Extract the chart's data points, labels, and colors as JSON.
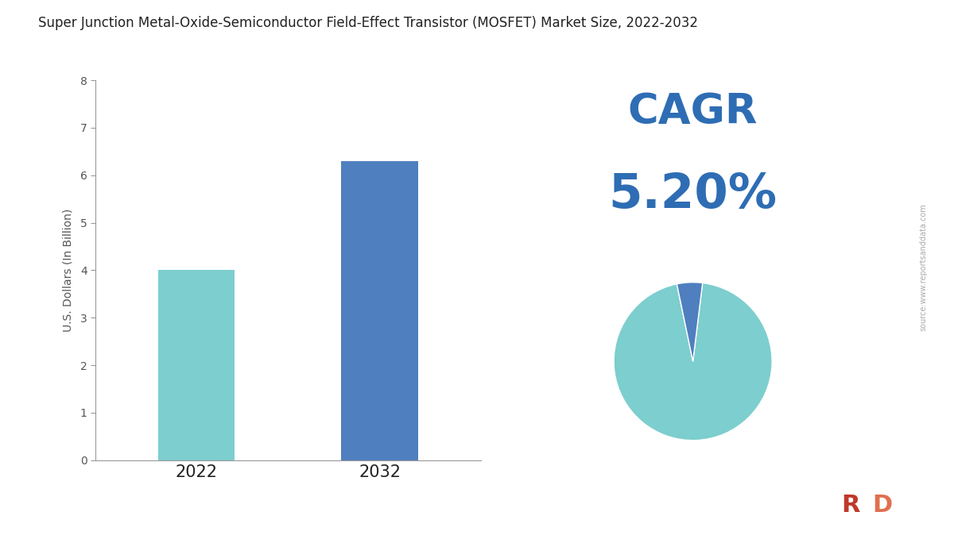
{
  "title": "Super Junction Metal-Oxide-Semiconductor Field-Effect Transistor (MOSFET) Market Size, 2022-2032",
  "title_fontsize": 12,
  "title_color": "#222222",
  "bar_categories": [
    "2022",
    "2032"
  ],
  "bar_values": [
    4.0,
    6.3
  ],
  "bar_colors": [
    "#7dcece",
    "#4f7fbf"
  ],
  "ylabel": "U.S. Dollars (In Billion)",
  "ylabel_fontsize": 10,
  "ylim": [
    0,
    8
  ],
  "yticks": [
    0,
    1,
    2,
    3,
    4,
    5,
    6,
    7,
    8
  ],
  "xtick_fontsize": 15,
  "ytick_fontsize": 10,
  "bar_width": 0.42,
  "cagr_label": "CAGR",
  "cagr_value": "5.20%",
  "cagr_color": "#2e6db4",
  "cagr_fontsize": 38,
  "cagr_value_fontsize": 44,
  "pie_colors": [
    "#7dcece",
    "#4f7fbf"
  ],
  "pie_values": [
    94.8,
    5.2
  ],
  "pie_startangle": 83,
  "source_text": "source:www.reportsanddata.com",
  "background_color": "#ffffff",
  "rd_r_color": "#c0392b",
  "rd_d_color": "#e07050"
}
